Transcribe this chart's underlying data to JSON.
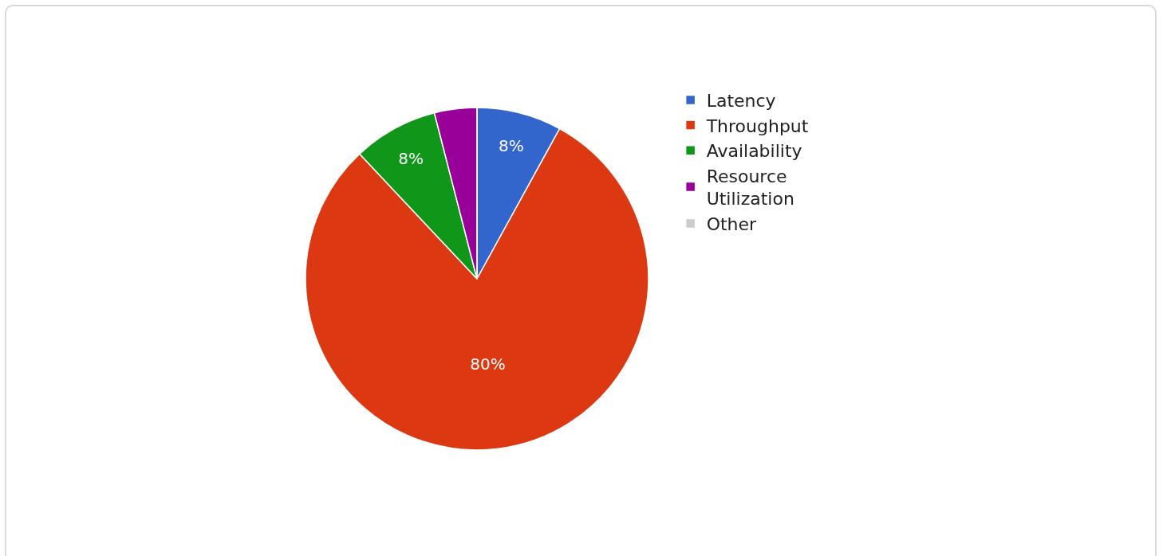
{
  "chart_data": {
    "type": "pie",
    "categories": [
      "Latency",
      "Throughput",
      "Availability",
      "Resource Utilization",
      "Other"
    ],
    "values": [
      8,
      80,
      8,
      4,
      0
    ],
    "colors": [
      "#3366cc",
      "#dc3912",
      "#109618",
      "#990099",
      "#cccccc"
    ],
    "value_labels": [
      "8%",
      "80%",
      "8%",
      null,
      null
    ],
    "legend": "right"
  }
}
